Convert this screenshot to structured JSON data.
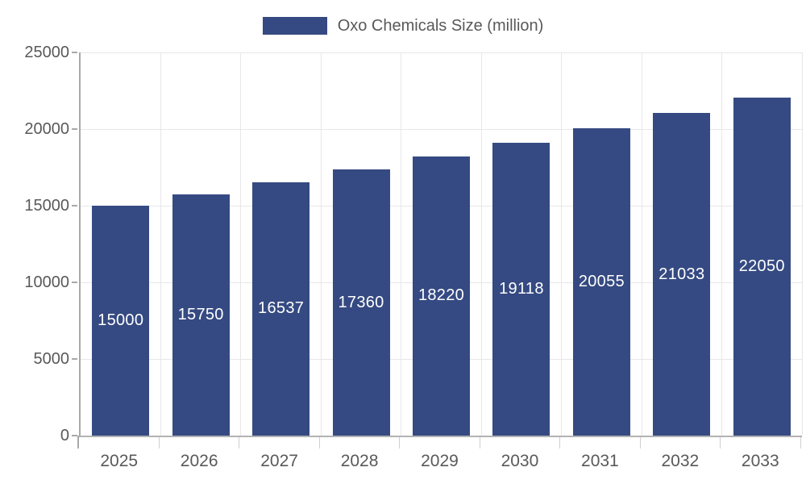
{
  "legend": {
    "label": "Oxo Chemicals Size (million)"
  },
  "colors": {
    "bar": "#354a82",
    "grid": "#e7e7ea",
    "axis": "#a9a9a9",
    "x_tick": "#cfcfcf",
    "tick_label": "#595959",
    "value_label": "#ffffff",
    "background": "#ffffff"
  },
  "chart_data": {
    "type": "bar",
    "title": "Oxo Chemicals Size (million)",
    "categories": [
      "2025",
      "2026",
      "2027",
      "2028",
      "2029",
      "2030",
      "2031",
      "2032",
      "2033"
    ],
    "series": [
      {
        "name": "Oxo Chemicals Size (million)",
        "values": [
          15000,
          15750,
          16537,
          17360,
          18220,
          19118,
          20055,
          21033,
          22050
        ]
      }
    ],
    "xlabel": "",
    "ylabel": "",
    "ylim": [
      0,
      25000
    ],
    "yticks": [
      0,
      5000,
      10000,
      15000,
      20000,
      25000
    ],
    "grid": true,
    "legend_position": "top-center",
    "value_labels": "inside-center-white"
  }
}
